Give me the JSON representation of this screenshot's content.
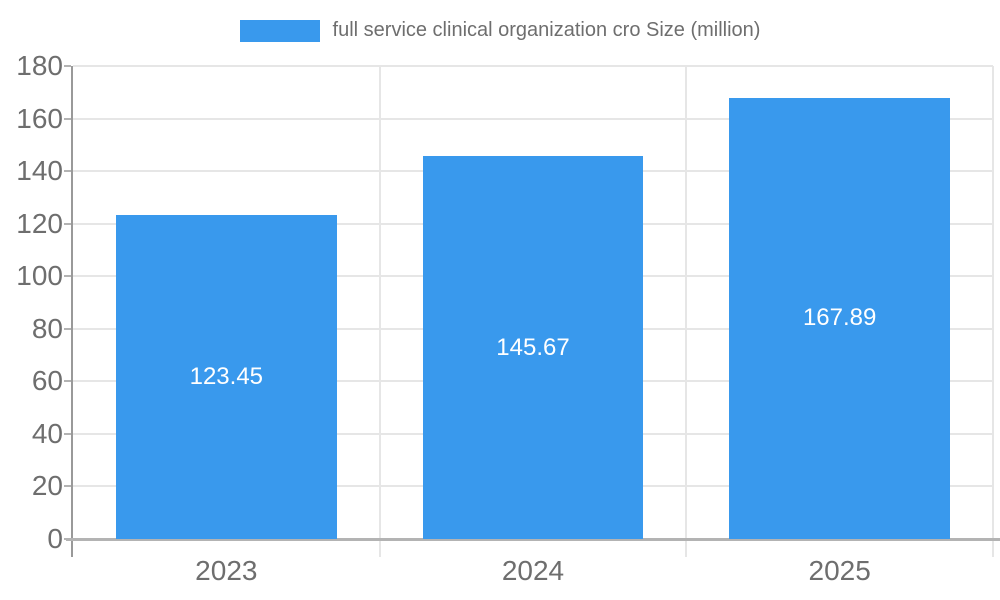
{
  "legend": {
    "label": "full service clinical organization cro Size (million)",
    "swatch_color": "#3999ed"
  },
  "chart_data": {
    "type": "bar",
    "title": "",
    "xlabel": "",
    "ylabel": "",
    "categories": [
      "2023",
      "2024",
      "2025"
    ],
    "values": [
      123.45,
      145.67,
      167.89
    ],
    "value_labels": [
      "123.45",
      "145.67",
      "167.89"
    ],
    "series_name": "full service clinical organization cro Size (million)",
    "ylim": [
      0,
      180
    ],
    "ytick_interval": 20,
    "yticks": [
      0,
      20,
      40,
      60,
      80,
      100,
      120,
      140,
      160,
      180
    ],
    "grid": true,
    "legend_position": "top",
    "bar_width_fraction": 0.72,
    "colors": {
      "bar": "#3999ed",
      "gridline": "#e6e6e6",
      "y_axis_line": "#999999",
      "x_axis_line": "#b3b3b3",
      "tick": "#b3b3b3",
      "axis_text": "#6e6e6e",
      "data_label_text": "#ffffff",
      "background": "#ffffff"
    }
  }
}
